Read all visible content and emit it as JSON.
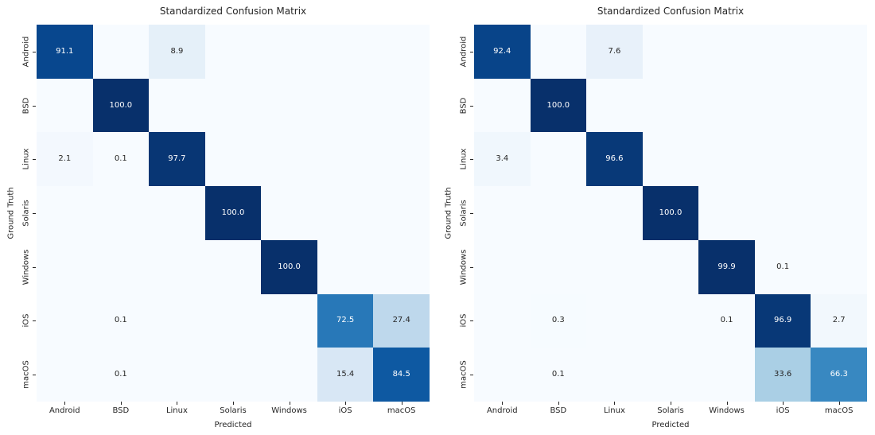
{
  "figure": {
    "background": "#ffffff"
  },
  "colors": {
    "colormap_name": "Blues",
    "colormap_anchors": [
      "#f7fbff",
      "#deebf7",
      "#c6dbef",
      "#9ecae1",
      "#6baed6",
      "#4292c6",
      "#2171b5",
      "#08519c",
      "#08306b"
    ],
    "annotation_dark_text": "#262626",
    "annotation_light_text": "#ffffff",
    "tick_color": "#262626",
    "title_color": "#262626"
  },
  "chart_data": [
    {
      "type": "heatmap",
      "title": "Standardized Confusion Matrix",
      "xlabel": "Predicted",
      "ylabel": "Ground Truth",
      "x_labels": [
        "Android",
        "BSD",
        "Linux",
        "Solaris",
        "Windows",
        "iOS",
        "macOS"
      ],
      "y_labels": [
        "Android",
        "BSD",
        "Linux",
        "Solaris",
        "Windows",
        "iOS",
        "macOS"
      ],
      "vmin": 0,
      "vmax": 100,
      "grid": false,
      "legend": "none",
      "values": [
        [
          91.1,
          null,
          8.9,
          null,
          null,
          null,
          null
        ],
        [
          null,
          100.0,
          null,
          null,
          null,
          null,
          null
        ],
        [
          2.1,
          0.1,
          97.7,
          null,
          null,
          null,
          null
        ],
        [
          null,
          null,
          null,
          100.0,
          null,
          null,
          null
        ],
        [
          null,
          null,
          null,
          null,
          100.0,
          null,
          null
        ],
        [
          null,
          0.1,
          null,
          null,
          null,
          72.5,
          27.4
        ],
        [
          null,
          0.1,
          null,
          null,
          null,
          15.4,
          84.5
        ]
      ]
    },
    {
      "type": "heatmap",
      "title": "Standardized Confusion Matrix",
      "xlabel": "Predicted",
      "ylabel": "Ground Truth",
      "x_labels": [
        "Android",
        "BSD",
        "Linux",
        "Solaris",
        "Windows",
        "iOS",
        "macOS"
      ],
      "y_labels": [
        "Android",
        "BSD",
        "Linux",
        "Solaris",
        "Windows",
        "iOS",
        "macOS"
      ],
      "vmin": 0,
      "vmax": 100,
      "grid": false,
      "legend": "none",
      "values": [
        [
          92.4,
          null,
          7.6,
          null,
          null,
          null,
          null
        ],
        [
          null,
          100.0,
          null,
          null,
          null,
          null,
          null
        ],
        [
          3.4,
          null,
          96.6,
          null,
          null,
          null,
          null
        ],
        [
          null,
          null,
          null,
          100.0,
          null,
          null,
          null
        ],
        [
          null,
          null,
          null,
          null,
          99.9,
          0.1,
          null
        ],
        [
          null,
          0.3,
          null,
          null,
          0.1,
          96.9,
          2.7
        ],
        [
          null,
          0.1,
          null,
          null,
          null,
          33.6,
          66.3
        ]
      ]
    }
  ]
}
